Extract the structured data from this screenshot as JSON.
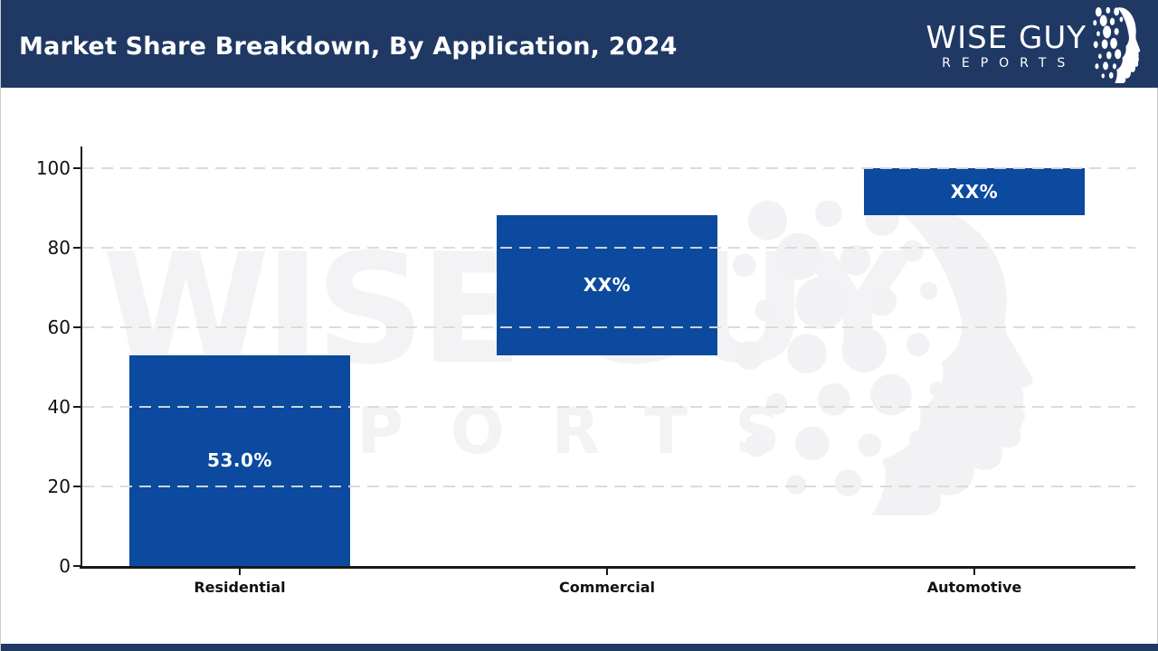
{
  "header": {
    "title": "Market Share Breakdown, By Application, 2024",
    "bg_color": "#1f3864",
    "logo": {
      "line1": "WISE GUY",
      "line2": "REPORTS"
    }
  },
  "watermark": {
    "line1": "WISE GUY",
    "line2": "REPORTS"
  },
  "chart_data": {
    "type": "bar",
    "subtype": "stacked-waterfall-segments",
    "title": "Market Share Breakdown, By Application, 2024",
    "categories": [
      "Residential",
      "Commercial",
      "Automotive"
    ],
    "segments": [
      {
        "category": "Residential",
        "start": 0,
        "end": 53.0,
        "value": 53.0,
        "label": "53.0%"
      },
      {
        "category": "Commercial",
        "start": 53.0,
        "end": 88.2,
        "value": 35.2,
        "label": "XX%"
      },
      {
        "category": "Automotive",
        "start": 88.2,
        "end": 100,
        "value": 11.8,
        "label": "XX%"
      }
    ],
    "bar_labels": [
      "53.0%",
      "XX%",
      "XX%"
    ],
    "y_ticks": [
      0,
      20,
      40,
      60,
      80,
      100
    ],
    "ylim": [
      0,
      105
    ],
    "xlabel": "",
    "ylabel": "",
    "grid": "horizontal-dashed",
    "legend": "none",
    "bar_color": "#0b4a9e",
    "grid_color": "#d9d9d9",
    "axis_color": "#1a1a1a"
  }
}
